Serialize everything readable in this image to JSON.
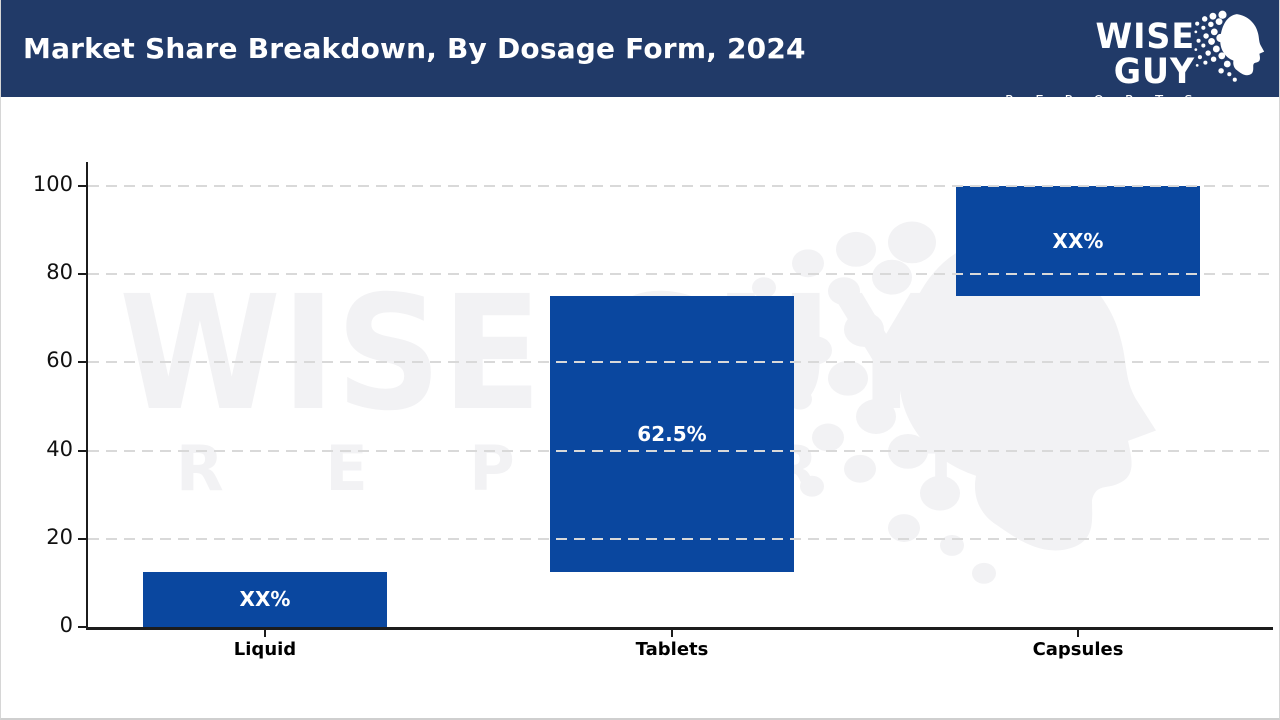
{
  "header": {
    "title": "Market Share Breakdown, By Dosage Form, 2024",
    "logo": {
      "line1": "WISE GUY",
      "line2": "R E P O R T S"
    }
  },
  "watermark": {
    "line1": "WISE GUY",
    "line2": "R E P O R T S"
  },
  "chart_data": {
    "type": "bar",
    "variant": "floating-segment-breakdown",
    "title": "Market Share Breakdown, By Dosage Form, 2024",
    "categories": [
      "Liquid",
      "Tablets",
      "Capsules"
    ],
    "series": [
      {
        "name": "Market Share",
        "segments": [
          {
            "category": "Liquid",
            "start": 0,
            "end": 12.5,
            "label": "XX%"
          },
          {
            "category": "Tablets",
            "start": 12.5,
            "end": 75,
            "label": "62.5%"
          },
          {
            "category": "Capsules",
            "start": 75,
            "end": 100,
            "label": "XX%"
          }
        ]
      }
    ],
    "xlabel": "",
    "ylabel": "",
    "ylim": [
      0,
      100
    ],
    "yticks": [
      0,
      20,
      40,
      60,
      80,
      100
    ],
    "grid": "horizontal-dashed, drawn over bars",
    "legend": "none",
    "bar_color": "#0a479f",
    "bar_label_color": "#ffffff"
  },
  "colors": {
    "header_bg": "#213a68",
    "title_text": "#ffffff",
    "bar_blue": "#0a479f",
    "watermark_gray": "#f2f2f4",
    "grid_gray": "#d9d9d9",
    "axis_black": "#1c1c1c",
    "page_bg": "#ffffff"
  }
}
